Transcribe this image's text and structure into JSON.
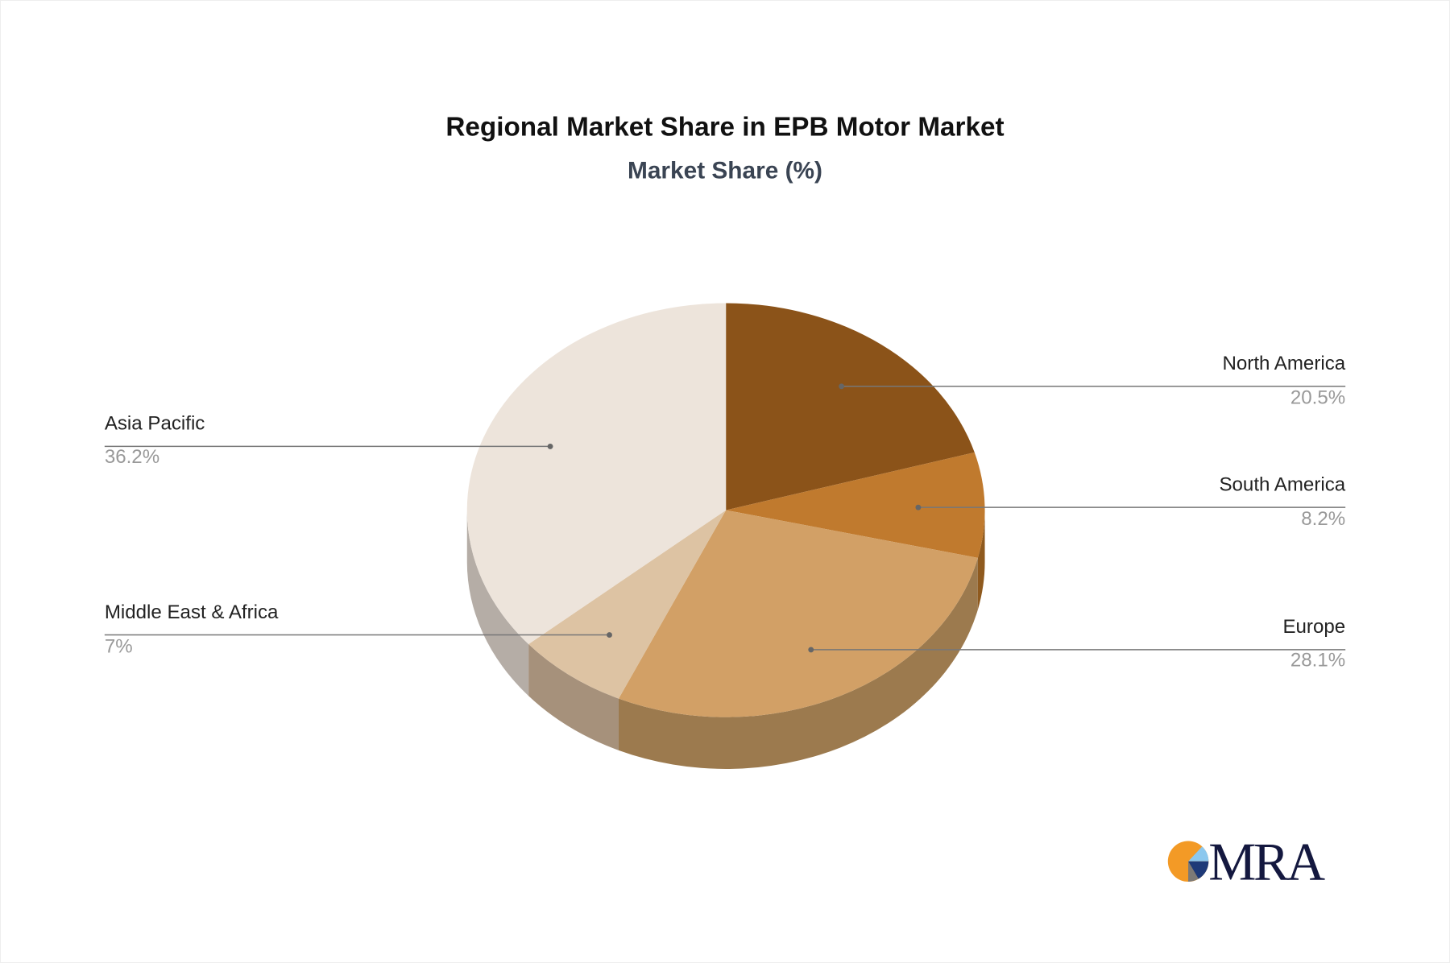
{
  "chart_data": {
    "type": "pie",
    "style": "3d",
    "title": "Regional Market Share in EPB Motor Market",
    "subtitle": "Market Share (%)",
    "categories": [
      "North America",
      "South America",
      "Europe",
      "Middle East & Africa",
      "Asia Pacific"
    ],
    "values": [
      20.5,
      8.2,
      28.1,
      7,
      36.2
    ],
    "value_labels": [
      "20.5%",
      "8.2%",
      "28.1%",
      "7%",
      "36.2%"
    ],
    "colors": [
      "#8B5319",
      "#C07A2E",
      "#D2A066",
      "#DDC3A3",
      "#EDE4DB"
    ],
    "side_colors": [
      "#6E4010",
      "#8F5A1E",
      "#9C7A4E",
      "#A6917B",
      "#B5ADA6"
    ],
    "legend": "none"
  },
  "logo": {
    "text": "MRA",
    "colors": [
      "#F39A26",
      "#8CC8EE",
      "#1E3A78",
      "#7D7A76"
    ]
  }
}
